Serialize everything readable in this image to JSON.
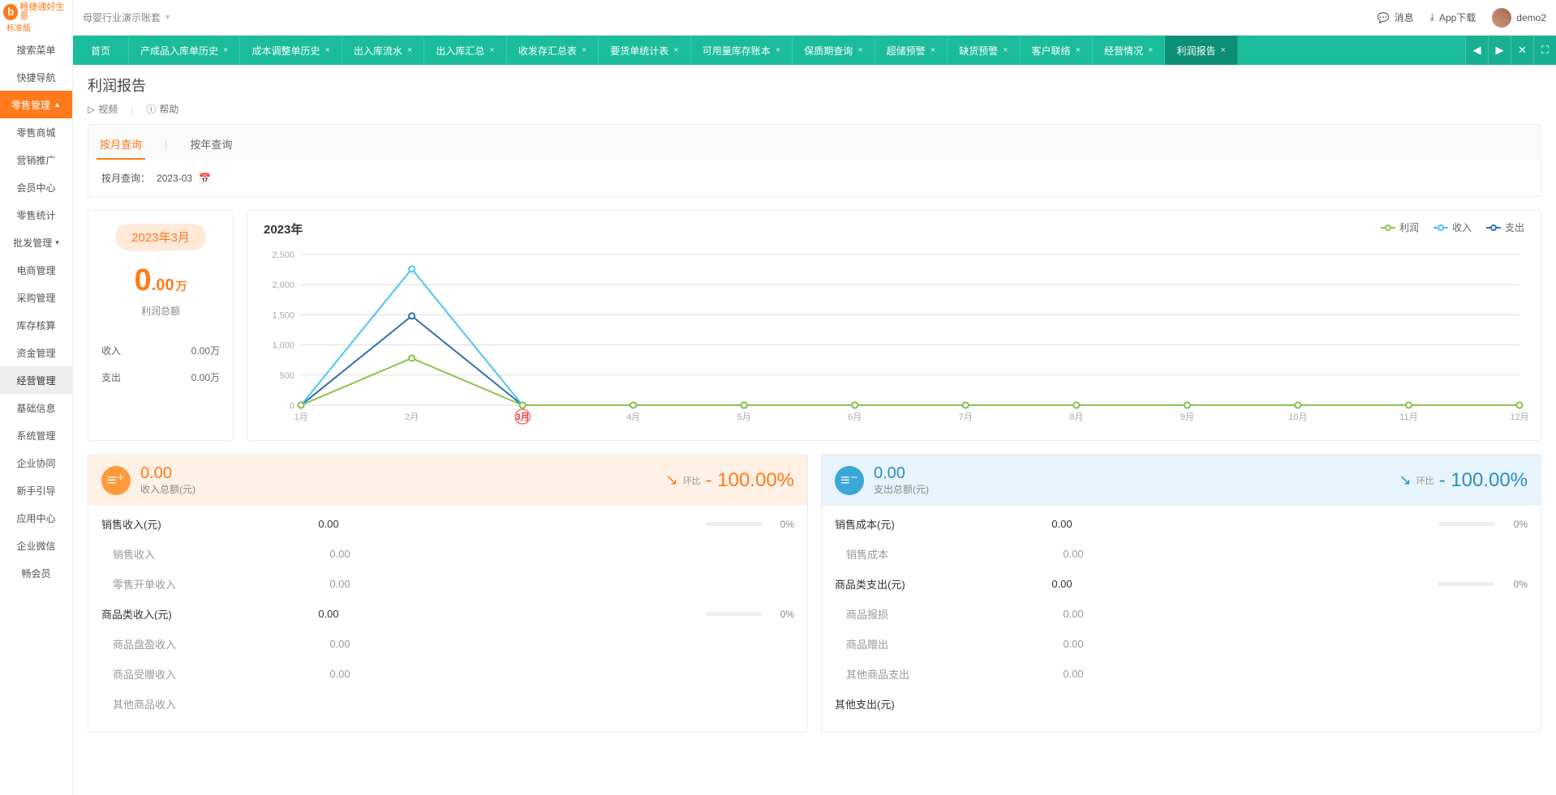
{
  "logo": {
    "brand": "畅捷通好生意",
    "edition": "标准版"
  },
  "topbar": {
    "account": "母婴行业演示账套",
    "msg": "消息",
    "download": "App下载",
    "user": "demo2"
  },
  "sidebar": {
    "items": [
      {
        "label": "搜索菜单"
      },
      {
        "label": "快捷导航"
      },
      {
        "label": "零售管理",
        "active": true,
        "caret": "▲"
      },
      {
        "label": "零售商城"
      },
      {
        "label": "营销推广"
      },
      {
        "label": "会员中心"
      },
      {
        "label": "零售统计"
      },
      {
        "label": "批发管理",
        "caret": "▾"
      },
      {
        "label": "电商管理"
      },
      {
        "label": "采购管理"
      },
      {
        "label": "库存核算"
      },
      {
        "label": "资金管理"
      },
      {
        "label": "经营管理",
        "current": true
      },
      {
        "label": "基础信息"
      },
      {
        "label": "系统管理"
      },
      {
        "label": "企业协同"
      },
      {
        "label": "新手引导"
      },
      {
        "label": "应用中心"
      },
      {
        "label": "企业微信"
      },
      {
        "label": "畅会员"
      }
    ]
  },
  "tabs": {
    "home": "首页",
    "items": [
      "产成品入库单历史",
      "成本调整单历史",
      "出入库流水",
      "出入库汇总",
      "收发存汇总表",
      "要货单统计表",
      "可用量库存账本",
      "保质期查询",
      "超储预警",
      "缺货预警",
      "客户联络",
      "经营情况",
      "利润报告"
    ],
    "activeIndex": 12
  },
  "page": {
    "title": "利润报告",
    "video": "视频",
    "help": "帮助",
    "queryTabs": {
      "byMonth": "按月查询",
      "byYear": "按年查询"
    },
    "queryLabel": "按月查询：",
    "queryValue": "2023-03"
  },
  "summary": {
    "period": "2023年3月",
    "profitBig": "0",
    "profitDec": ".00",
    "profitUnit": "万",
    "profitLabel": "利润总额",
    "incomeLabel": "收入",
    "incomeVal": "0.00万",
    "expenseLabel": "支出",
    "expenseVal": "0.00万"
  },
  "chart": {
    "title": "2023年",
    "legend": {
      "profit": "利润",
      "income": "收入",
      "expense": "支出"
    },
    "colors": {
      "profit": "#8bc34a",
      "income": "#4fc3f7",
      "expense": "#2f6fb0"
    },
    "months": [
      "1月",
      "2月",
      "3月",
      "4月",
      "5月",
      "6月",
      "7月",
      "8月",
      "9月",
      "10月",
      "11月",
      "12月"
    ],
    "yTicks": [
      0,
      500,
      1000,
      1500,
      2000,
      2500
    ],
    "yMax": 2500,
    "highlightIndex": 2,
    "series": {
      "profit": [
        0,
        780,
        0,
        0,
        0,
        0,
        0,
        0,
        0,
        0,
        0,
        0
      ],
      "income": [
        0,
        2260,
        0,
        0,
        0,
        0,
        0,
        0,
        0,
        0,
        0,
        0
      ],
      "expense": [
        0,
        1480,
        0,
        0,
        0,
        0,
        0,
        0,
        0,
        null,
        null,
        null
      ]
    },
    "axisColor": "#ddd",
    "labelColor": "#aaa",
    "bgColor": "#ffffff"
  },
  "incomePanel": {
    "value": "0.00",
    "label": "收入总额(元)",
    "hb": "环比",
    "trend": "- 100.00%",
    "rows": [
      {
        "lbl": "销售收入(元)",
        "val": "0.00",
        "pct": "0%"
      },
      {
        "lbl": "销售收入",
        "val": "0.00",
        "sub": true
      },
      {
        "lbl": "零售开单收入",
        "val": "0.00",
        "sub": true
      },
      {
        "lbl": "商品类收入(元)",
        "val": "0.00",
        "pct": "0%"
      },
      {
        "lbl": "商品盘盈收入",
        "val": "0.00",
        "sub": true
      },
      {
        "lbl": "商品受赠收入",
        "val": "0.00",
        "sub": true
      },
      {
        "lbl": "其他商品收入",
        "val": "",
        "sub": true
      }
    ]
  },
  "expensePanel": {
    "value": "0.00",
    "label": "支出总额(元)",
    "hb": "环比",
    "trend": "- 100.00%",
    "rows": [
      {
        "lbl": "销售成本(元)",
        "val": "0.00",
        "pct": "0%"
      },
      {
        "lbl": "销售成本",
        "val": "0.00",
        "sub": true
      },
      {
        "lbl": "商品类支出(元)",
        "val": "0.00",
        "pct": "0%"
      },
      {
        "lbl": "商品报损",
        "val": "0.00",
        "sub": true
      },
      {
        "lbl": "商品赠出",
        "val": "0.00",
        "sub": true
      },
      {
        "lbl": "其他商品支出",
        "val": "0.00",
        "sub": true
      },
      {
        "lbl": "其他支出(元)",
        "val": "",
        "sub": false
      }
    ]
  }
}
